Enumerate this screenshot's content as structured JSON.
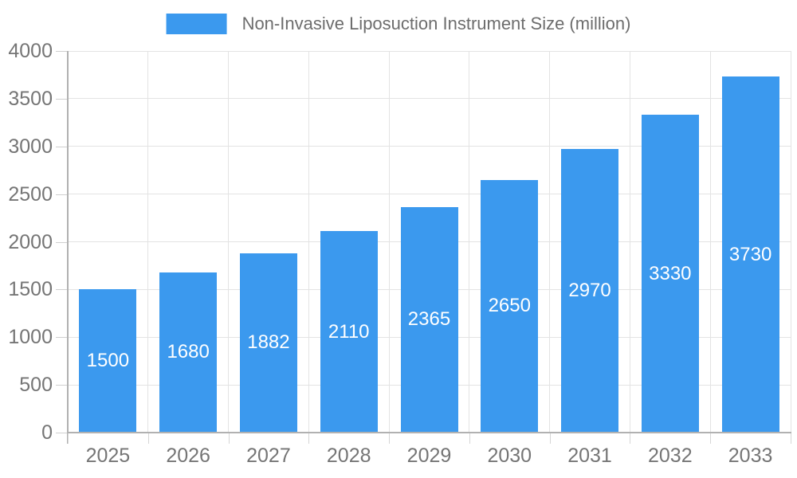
{
  "chart_data": {
    "type": "bar",
    "title": "Non-Invasive Liposuction Instrument Size (million)",
    "categories": [
      "2025",
      "2026",
      "2027",
      "2028",
      "2029",
      "2030",
      "2031",
      "2032",
      "2033"
    ],
    "values": [
      1500,
      1680,
      1882,
      2110,
      2365,
      2650,
      2970,
      3330,
      3730
    ],
    "series": [
      {
        "name": "Non-Invasive Liposuction Instrument Size (million)",
        "values": [
          1500,
          1680,
          1882,
          2110,
          2365,
          2650,
          2970,
          3330,
          3730
        ]
      }
    ],
    "xlabel": "",
    "ylabel": "",
    "ylim": [
      0,
      4000
    ],
    "yticks": [
      0,
      500,
      1000,
      1500,
      2000,
      2500,
      3000,
      3500,
      4000
    ],
    "grid": true,
    "legend_position": "top",
    "bar_color": "#3B99EE",
    "value_label_color": "#FFFFFF",
    "axis_text_color": "#757575",
    "title_text_color": "#6D6D6D",
    "grid_color": "#E3E3E3",
    "axis_line_color": "#B1B1B1"
  }
}
